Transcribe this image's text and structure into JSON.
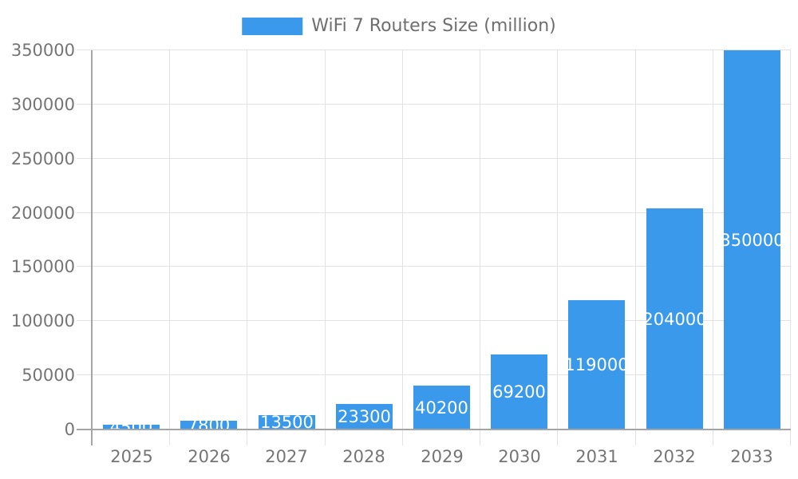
{
  "legend": {
    "position": "top",
    "series_label": "WiFi 7 Routers Size (million)"
  },
  "chart_data": {
    "type": "bar",
    "title": "WiFi 7 Routers Size (million)",
    "categories": [
      "2025",
      "2026",
      "2027",
      "2028",
      "2029",
      "2030",
      "2031",
      "2032",
      "2033"
    ],
    "series": [
      {
        "name": "WiFi 7 Routers Size (million)",
        "values": [
          4500,
          7800,
          13500,
          23300,
          40200,
          69200,
          119000,
          204000,
          350000
        ]
      }
    ],
    "bar_value_labels": [
      "4500",
      "7800",
      "13500",
      "23300",
      "40200",
      "69200",
      "119000",
      "204000",
      "350000"
    ],
    "xlabel": "",
    "ylabel": "",
    "ylim": [
      0,
      350000
    ],
    "ytick_step": 50000,
    "ytick_labels": [
      "0",
      "50000",
      "100000",
      "150000",
      "200000",
      "250000",
      "300000",
      "350000"
    ],
    "grid": true,
    "legend_position": "top",
    "colors": {
      "bar": "#3B99EC",
      "bar_label": "#FFFFFF",
      "axis_label": "#757575",
      "title": "#6E6E6E",
      "grid_line": "#E2E2E2",
      "axis_line": "#A5A5A5",
      "background": "#FFFFFF"
    }
  }
}
